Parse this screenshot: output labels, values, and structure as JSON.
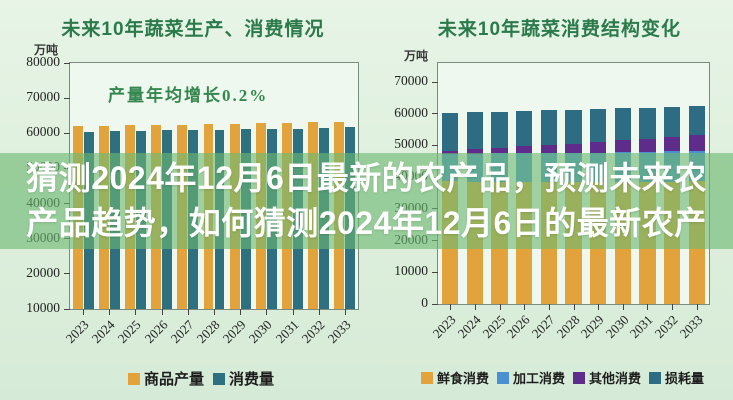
{
  "overlay": {
    "line1": "猜测2024年12月6日最新的农产品，预测未来农",
    "line2": "产品趋势，如何猜测2024年12月6日的最新农产"
  },
  "chart_data": [
    {
      "type": "bar",
      "variant": "grouped",
      "title": "未来10年蔬菜生产、消费情况",
      "unit_label": "万吨",
      "annotation": "产量年均增长0.2%",
      "categories": [
        "2023",
        "2024",
        "2025",
        "2026",
        "2027",
        "2028",
        "2029",
        "2030",
        "2031",
        "2032",
        "2033"
      ],
      "series": [
        {
          "name": "商品产量",
          "color": "#E3A33C",
          "values": [
            62000,
            62100,
            62250,
            62400,
            62500,
            62600,
            62750,
            62900,
            63000,
            63100,
            63250
          ]
        },
        {
          "name": "消费量",
          "color": "#2E6F80",
          "values": [
            60500,
            60600,
            60700,
            60800,
            60900,
            61000,
            61100,
            61200,
            61350,
            61500,
            61800
          ]
        }
      ],
      "ylim": [
        10000,
        80000
      ],
      "yticks": [
        10000,
        20000,
        30000,
        40000,
        50000,
        60000,
        70000,
        80000
      ],
      "grid": false,
      "legend_position": "bottom"
    },
    {
      "type": "bar",
      "variant": "stacked",
      "title": "未来10年蔬菜消费结构变化",
      "unit_label": "万吨",
      "annotation": "",
      "categories": [
        "2023",
        "2024",
        "2025",
        "2026",
        "2027",
        "2028",
        "2029",
        "2030",
        "2031",
        "2032",
        "2033"
      ],
      "series": [
        {
          "name": "鲜食消费",
          "color": "#E3A33C",
          "values": [
            38700,
            38600,
            38600,
            38500,
            38400,
            38400,
            38400,
            38400,
            38400,
            38500,
            38700
          ]
        },
        {
          "name": "加工消费",
          "color": "#4A90D0",
          "values": [
            8700,
            8800,
            8900,
            9000,
            9100,
            9200,
            9300,
            9400,
            9500,
            9600,
            9700
          ]
        },
        {
          "name": "其他消费",
          "color": "#5E2D8C",
          "values": [
            1000,
            1400,
            1800,
            2200,
            2600,
            3000,
            3400,
            3800,
            4200,
            4600,
            5000
          ]
        },
        {
          "name": "损耗量",
          "color": "#2E6C84",
          "values": [
            11900,
            11600,
            11400,
            11200,
            11000,
            10700,
            10400,
            10100,
            9800,
            9500,
            9100
          ]
        }
      ],
      "ylim": [
        0,
        76000
      ],
      "yticks": [
        0,
        10000,
        20000,
        30000,
        40000,
        50000,
        60000,
        70000
      ],
      "grid": false,
      "legend_position": "bottom"
    }
  ]
}
